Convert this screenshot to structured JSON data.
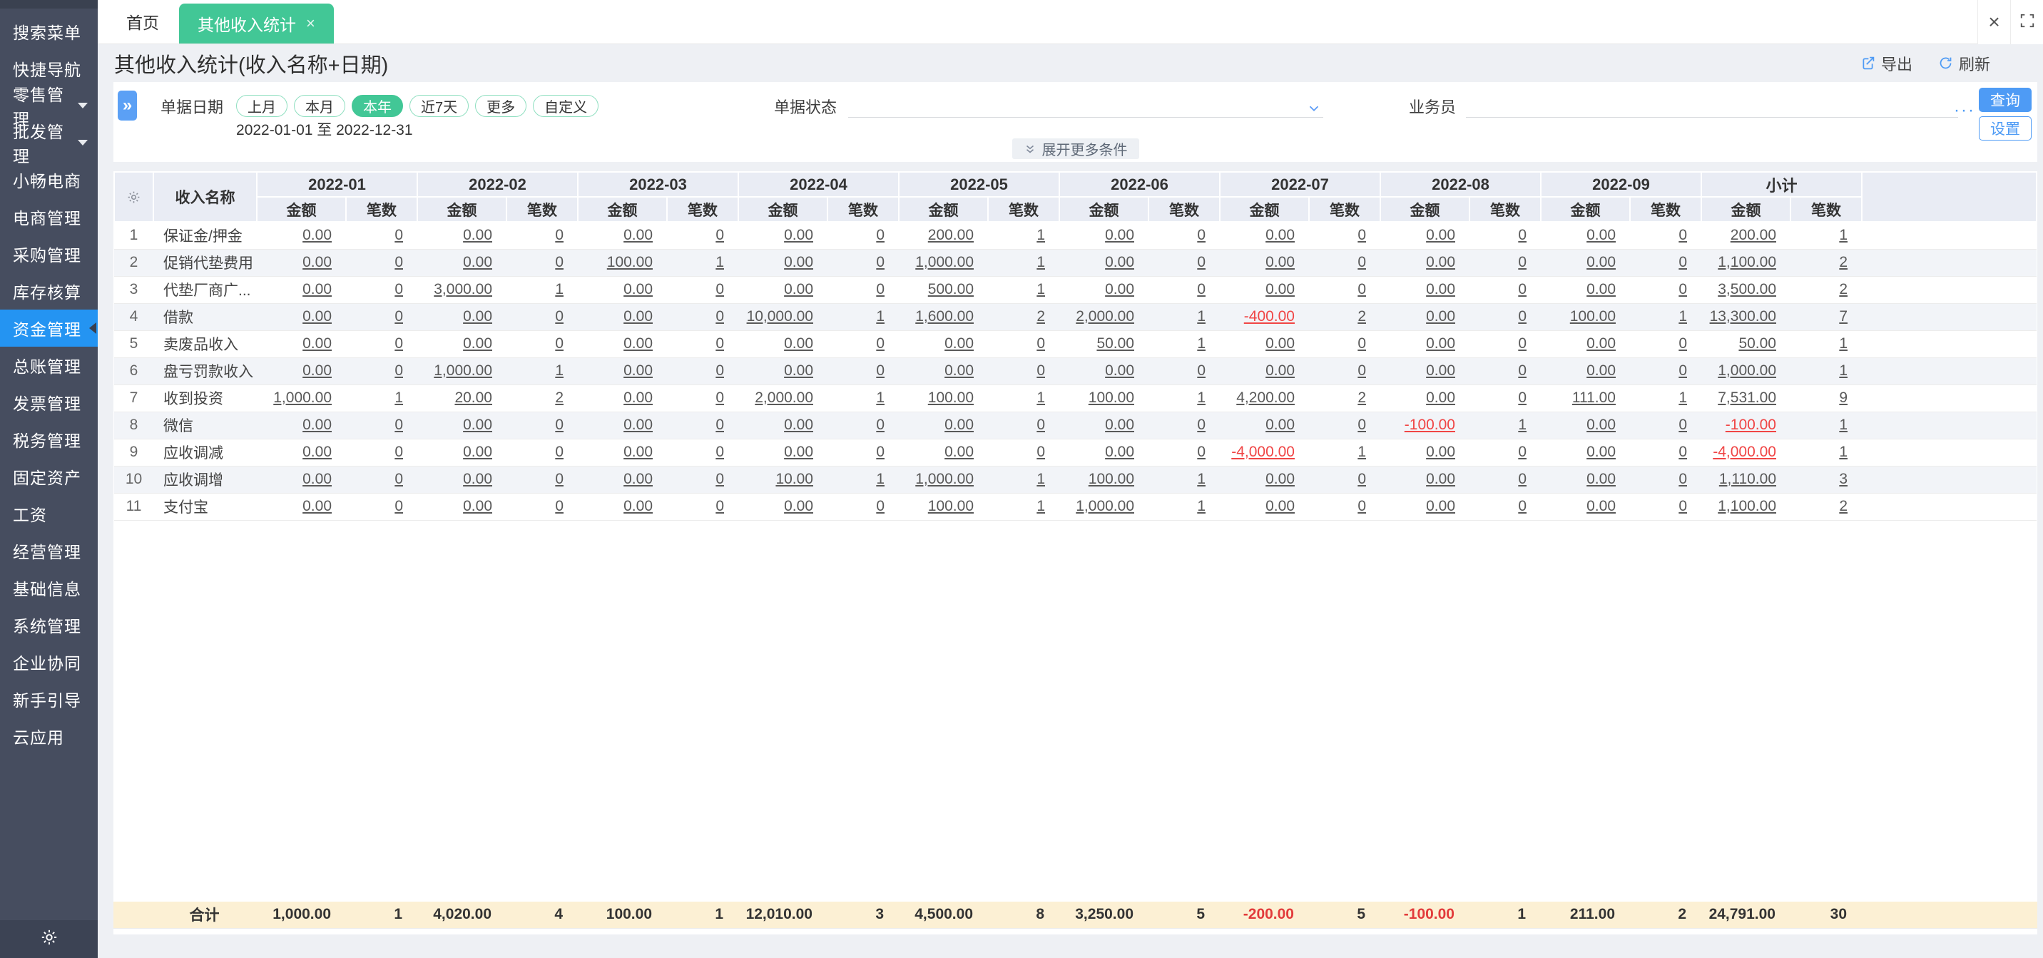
{
  "sidebar": {
    "items": [
      {
        "label": "搜索菜单",
        "caret": false,
        "active": false
      },
      {
        "label": "快捷导航",
        "caret": false,
        "active": false
      },
      {
        "label": "零售管理",
        "caret": true,
        "active": false
      },
      {
        "label": "批发管理",
        "caret": true,
        "active": false
      },
      {
        "label": "小畅电商",
        "caret": false,
        "active": false
      },
      {
        "label": "电商管理",
        "caret": false,
        "active": false
      },
      {
        "label": "采购管理",
        "caret": false,
        "active": false
      },
      {
        "label": "库存核算",
        "caret": false,
        "active": false
      },
      {
        "label": "资金管理",
        "caret": false,
        "active": true
      },
      {
        "label": "总账管理",
        "caret": false,
        "active": false
      },
      {
        "label": "发票管理",
        "caret": false,
        "active": false
      },
      {
        "label": "税务管理",
        "caret": false,
        "active": false
      },
      {
        "label": "固定资产",
        "caret": false,
        "active": false
      },
      {
        "label": "工资",
        "caret": false,
        "active": false
      },
      {
        "label": "经营管理",
        "caret": false,
        "active": false
      },
      {
        "label": "基础信息",
        "caret": false,
        "active": false
      },
      {
        "label": "系统管理",
        "caret": false,
        "active": false
      },
      {
        "label": "企业协同",
        "caret": false,
        "active": false
      },
      {
        "label": "新手引导",
        "caret": false,
        "active": false
      },
      {
        "label": "云应用",
        "caret": false,
        "active": false
      }
    ]
  },
  "tabs": {
    "home_label": "首页",
    "active_label": "其他收入统计",
    "close_glyph": "×",
    "close_all_glyph": "×"
  },
  "page": {
    "title": "其他收入统计(收入名称+日期)",
    "export_label": "导出",
    "refresh_label": "刷新"
  },
  "filters": {
    "collapse_glyph": "»",
    "date_label": "单据日期",
    "date_presets": [
      {
        "label": "上月",
        "active": false
      },
      {
        "label": "本月",
        "active": false
      },
      {
        "label": "本年",
        "active": true
      },
      {
        "label": "近7天",
        "active": false
      },
      {
        "label": "更多",
        "active": false
      },
      {
        "label": "自定义",
        "active": false
      }
    ],
    "date_start": "2022-01-01",
    "date_separator": "至",
    "date_end": "2022-12-31",
    "status_label": "单据状态",
    "status_value": "",
    "salesperson_label": "业务员",
    "salesperson_value": "",
    "more_dots": "···",
    "query_label": "查询",
    "settings_label": "设置",
    "expand_more_label": "展开更多条件"
  },
  "table": {
    "name_header": "收入名称",
    "amount_label": "金额",
    "count_label": "笔数",
    "months": [
      "2022-01",
      "2022-02",
      "2022-03",
      "2022-04",
      "2022-05",
      "2022-06",
      "2022-07",
      "2022-08",
      "2022-09",
      "小计"
    ],
    "rows": [
      {
        "name": "保证金/押金",
        "cells": [
          [
            "0.00",
            "0"
          ],
          [
            "0.00",
            "0"
          ],
          [
            "0.00",
            "0"
          ],
          [
            "0.00",
            "0"
          ],
          [
            "200.00",
            "1"
          ],
          [
            "0.00",
            "0"
          ],
          [
            "0.00",
            "0"
          ],
          [
            "0.00",
            "0"
          ],
          [
            "0.00",
            "0"
          ],
          [
            "200.00",
            "1"
          ]
        ]
      },
      {
        "name": "促销代垫费用",
        "cells": [
          [
            "0.00",
            "0"
          ],
          [
            "0.00",
            "0"
          ],
          [
            "100.00",
            "1"
          ],
          [
            "0.00",
            "0"
          ],
          [
            "1,000.00",
            "1"
          ],
          [
            "0.00",
            "0"
          ],
          [
            "0.00",
            "0"
          ],
          [
            "0.00",
            "0"
          ],
          [
            "0.00",
            "0"
          ],
          [
            "1,100.00",
            "2"
          ]
        ]
      },
      {
        "name": "代垫厂商广...",
        "cells": [
          [
            "0.00",
            "0"
          ],
          [
            "3,000.00",
            "1"
          ],
          [
            "0.00",
            "0"
          ],
          [
            "0.00",
            "0"
          ],
          [
            "500.00",
            "1"
          ],
          [
            "0.00",
            "0"
          ],
          [
            "0.00",
            "0"
          ],
          [
            "0.00",
            "0"
          ],
          [
            "0.00",
            "0"
          ],
          [
            "3,500.00",
            "2"
          ]
        ]
      },
      {
        "name": "借款",
        "cells": [
          [
            "0.00",
            "0"
          ],
          [
            "0.00",
            "0"
          ],
          [
            "0.00",
            "0"
          ],
          [
            "10,000.00",
            "1"
          ],
          [
            "1,600.00",
            "2"
          ],
          [
            "2,000.00",
            "1"
          ],
          [
            "-400.00",
            "2"
          ],
          [
            "0.00",
            "0"
          ],
          [
            "100.00",
            "1"
          ],
          [
            "13,300.00",
            "7"
          ]
        ]
      },
      {
        "name": "卖废品收入",
        "cells": [
          [
            "0.00",
            "0"
          ],
          [
            "0.00",
            "0"
          ],
          [
            "0.00",
            "0"
          ],
          [
            "0.00",
            "0"
          ],
          [
            "0.00",
            "0"
          ],
          [
            "50.00",
            "1"
          ],
          [
            "0.00",
            "0"
          ],
          [
            "0.00",
            "0"
          ],
          [
            "0.00",
            "0"
          ],
          [
            "50.00",
            "1"
          ]
        ]
      },
      {
        "name": "盘亏罚款收入",
        "cells": [
          [
            "0.00",
            "0"
          ],
          [
            "1,000.00",
            "1"
          ],
          [
            "0.00",
            "0"
          ],
          [
            "0.00",
            "0"
          ],
          [
            "0.00",
            "0"
          ],
          [
            "0.00",
            "0"
          ],
          [
            "0.00",
            "0"
          ],
          [
            "0.00",
            "0"
          ],
          [
            "0.00",
            "0"
          ],
          [
            "1,000.00",
            "1"
          ]
        ]
      },
      {
        "name": "收到投资",
        "cells": [
          [
            "1,000.00",
            "1"
          ],
          [
            "20.00",
            "2"
          ],
          [
            "0.00",
            "0"
          ],
          [
            "2,000.00",
            "1"
          ],
          [
            "100.00",
            "1"
          ],
          [
            "100.00",
            "1"
          ],
          [
            "4,200.00",
            "2"
          ],
          [
            "0.00",
            "0"
          ],
          [
            "111.00",
            "1"
          ],
          [
            "7,531.00",
            "9"
          ]
        ]
      },
      {
        "name": "微信",
        "cells": [
          [
            "0.00",
            "0"
          ],
          [
            "0.00",
            "0"
          ],
          [
            "0.00",
            "0"
          ],
          [
            "0.00",
            "0"
          ],
          [
            "0.00",
            "0"
          ],
          [
            "0.00",
            "0"
          ],
          [
            "0.00",
            "0"
          ],
          [
            "-100.00",
            "1"
          ],
          [
            "0.00",
            "0"
          ],
          [
            "-100.00",
            "1"
          ]
        ]
      },
      {
        "name": "应收调减",
        "cells": [
          [
            "0.00",
            "0"
          ],
          [
            "0.00",
            "0"
          ],
          [
            "0.00",
            "0"
          ],
          [
            "0.00",
            "0"
          ],
          [
            "0.00",
            "0"
          ],
          [
            "0.00",
            "0"
          ],
          [
            "-4,000.00",
            "1"
          ],
          [
            "0.00",
            "0"
          ],
          [
            "0.00",
            "0"
          ],
          [
            "-4,000.00",
            "1"
          ]
        ]
      },
      {
        "name": "应收调增",
        "cells": [
          [
            "0.00",
            "0"
          ],
          [
            "0.00",
            "0"
          ],
          [
            "0.00",
            "0"
          ],
          [
            "10.00",
            "1"
          ],
          [
            "1,000.00",
            "1"
          ],
          [
            "100.00",
            "1"
          ],
          [
            "0.00",
            "0"
          ],
          [
            "0.00",
            "0"
          ],
          [
            "0.00",
            "0"
          ],
          [
            "1,110.00",
            "3"
          ]
        ]
      },
      {
        "name": "支付宝",
        "cells": [
          [
            "0.00",
            "0"
          ],
          [
            "0.00",
            "0"
          ],
          [
            "0.00",
            "0"
          ],
          [
            "0.00",
            "0"
          ],
          [
            "100.00",
            "1"
          ],
          [
            "1,000.00",
            "1"
          ],
          [
            "0.00",
            "0"
          ],
          [
            "0.00",
            "0"
          ],
          [
            "0.00",
            "0"
          ],
          [
            "1,100.00",
            "2"
          ]
        ]
      }
    ],
    "footer": {
      "label": "合计",
      "cells": [
        [
          "1,000.00",
          "1"
        ],
        [
          "4,020.00",
          "4"
        ],
        [
          "100.00",
          "1"
        ],
        [
          "12,010.00",
          "3"
        ],
        [
          "4,500.00",
          "8"
        ],
        [
          "3,250.00",
          "5"
        ],
        [
          "-200.00",
          "5"
        ],
        [
          "-100.00",
          "1"
        ],
        [
          "211.00",
          "2"
        ],
        [
          "24,791.00",
          "30"
        ]
      ]
    }
  },
  "colors": {
    "sidebar_bg": "#464d5f",
    "sidebar_active": "#2494f2",
    "tab_active": "#42c796",
    "primary_blue": "#4e9bf5",
    "footer_bg": "#fcf0d4",
    "negative_red": "#f04545",
    "header_bg": "#e9ecf4"
  }
}
